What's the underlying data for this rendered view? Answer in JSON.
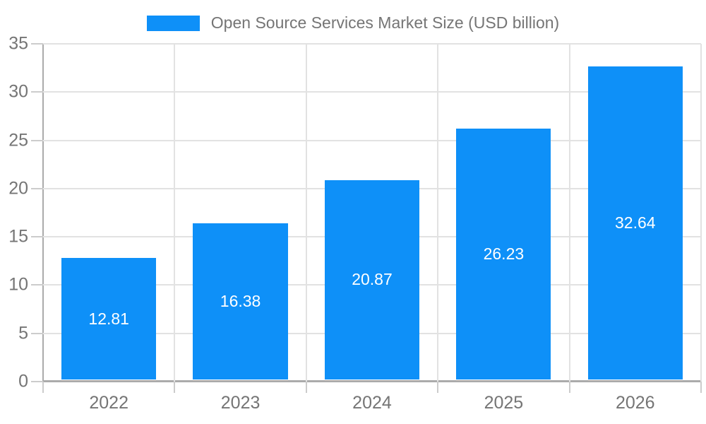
{
  "chart_data": {
    "type": "bar",
    "title": "Open Source Services Market Size (USD billion)",
    "legend": "Open Source Services Market Size (USD billion)",
    "legend_position": "top-center",
    "categories": [
      "2022",
      "2023",
      "2024",
      "2025",
      "2026"
    ],
    "values": [
      12.81,
      16.38,
      20.87,
      26.23,
      32.64
    ],
    "value_labels": [
      "12.81",
      "16.38",
      "20.87",
      "26.23",
      "32.64"
    ],
    "xlabel": "",
    "ylabel": "",
    "ylim": [
      0,
      35
    ],
    "y_ticks": [
      0,
      5,
      10,
      15,
      20,
      25,
      30,
      35
    ],
    "grid": true,
    "colors": {
      "bar": "#0e90f8",
      "grid_line": "#e2e2e2",
      "axis_line": "#ababab",
      "tick_mark": "#cccccc",
      "tick_text": "#757575",
      "value_text": "#ffffff",
      "background": "#ffffff"
    }
  }
}
